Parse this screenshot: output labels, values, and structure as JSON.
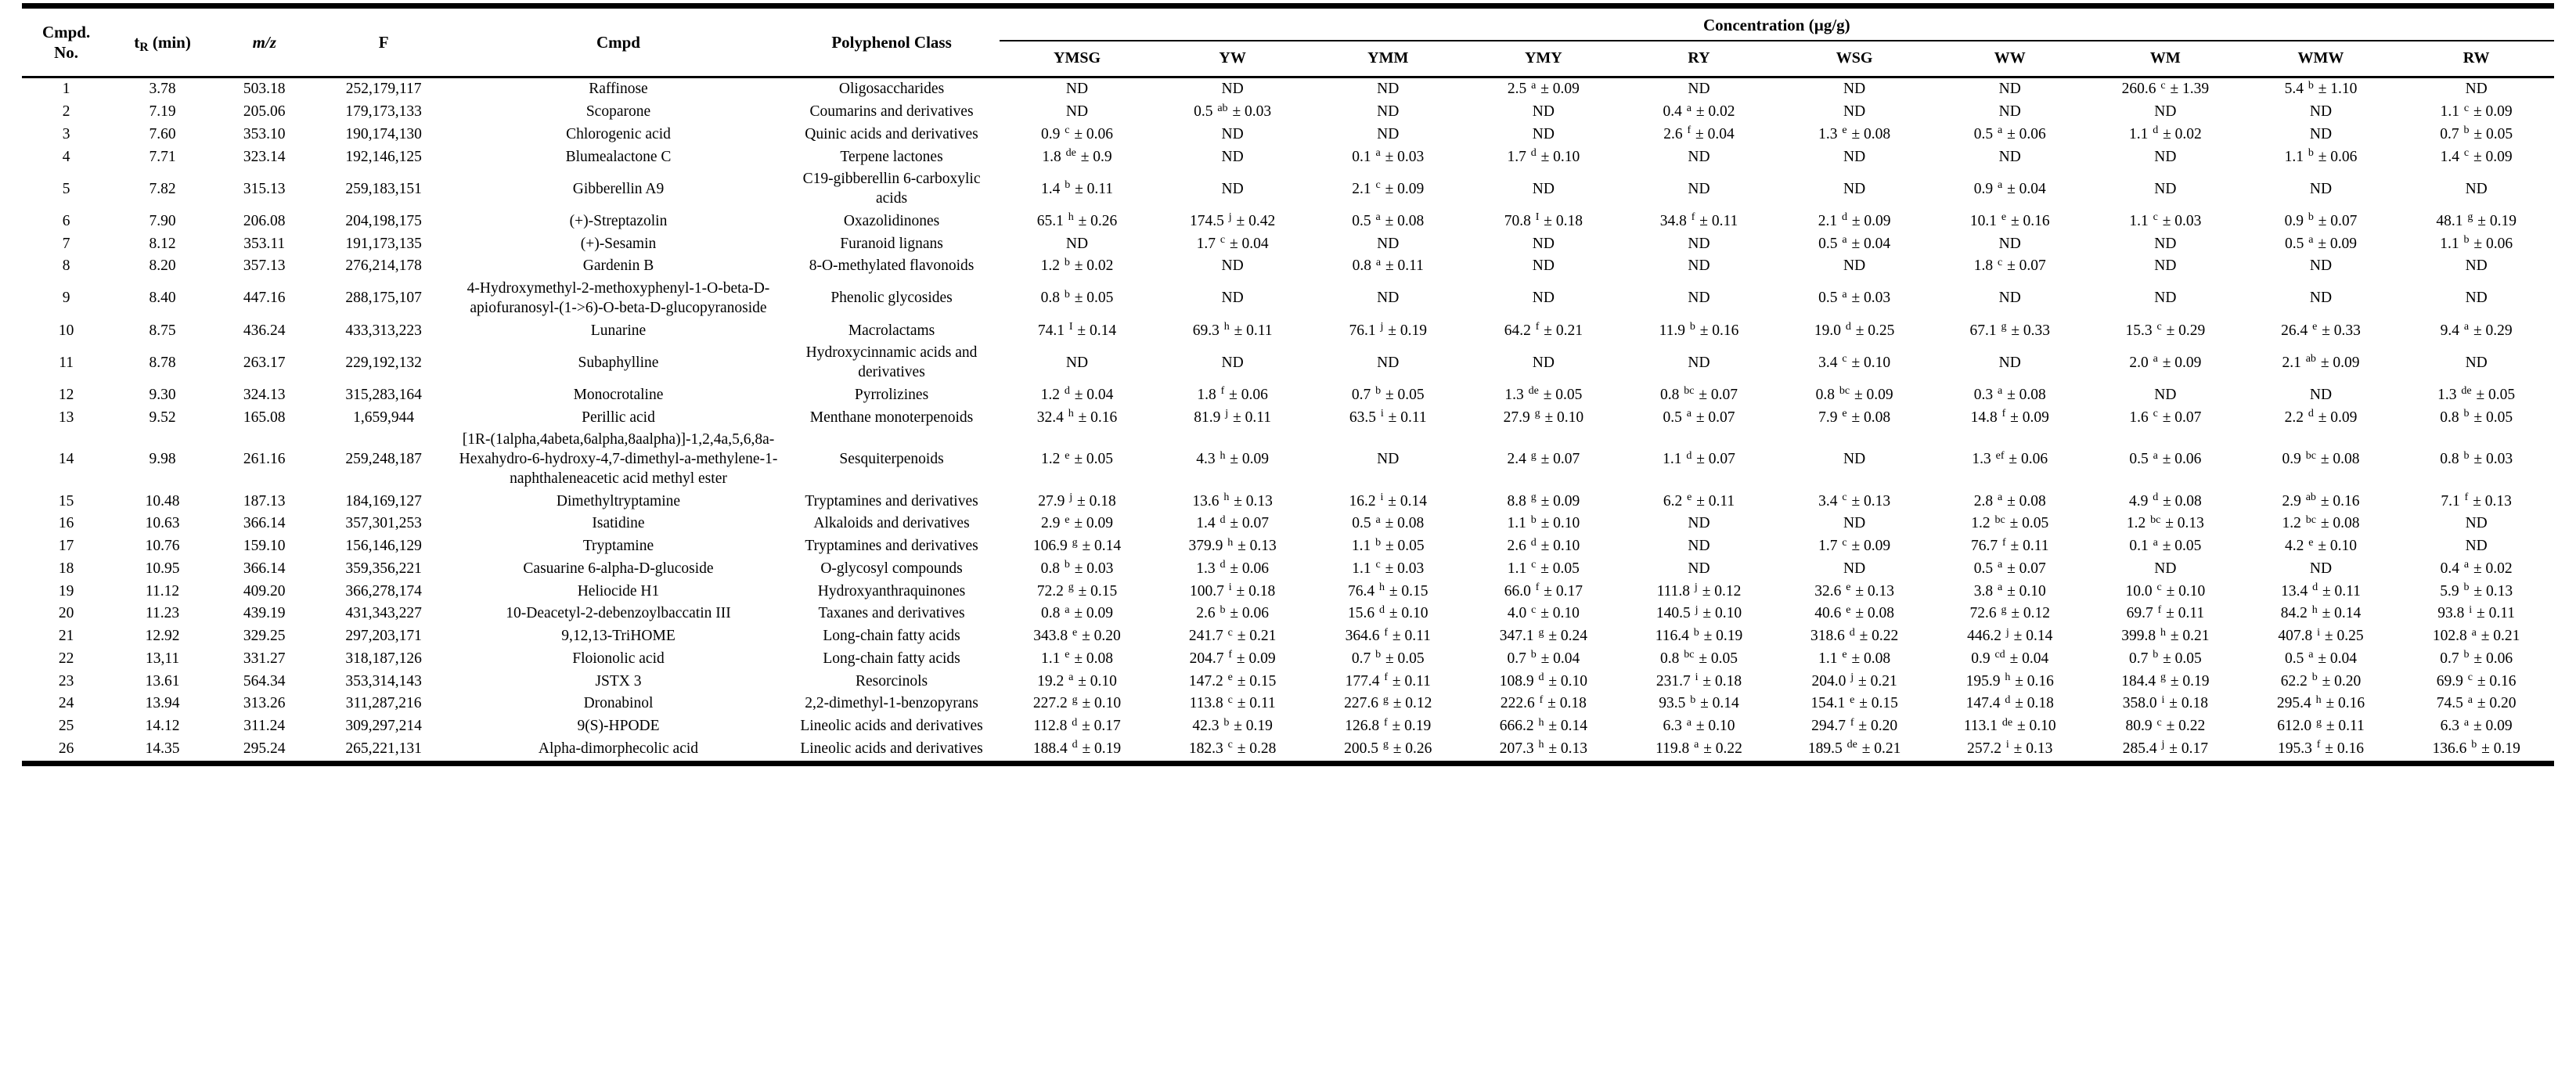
{
  "table": {
    "headers": {
      "cmpd_no_line1": "Cmpd.",
      "cmpd_no_line2": "No.",
      "tr_base": "t",
      "tr_sub": "R",
      "tr_rest": "(min)",
      "mz": "m/z",
      "f": "F",
      "cmpd": "Cmpd",
      "polyphenol_class": "Polyphenol Class",
      "concentration": "Concentration (µg/g)",
      "samples": [
        "YMSG",
        "YW",
        "YMM",
        "YMY",
        "RY",
        "WSG",
        "WW",
        "WM",
        "WMW",
        "RW"
      ]
    },
    "rows": [
      {
        "no": "1",
        "tr": "3.78",
        "mz": "503.18",
        "f": "252,179,117",
        "cmpd": "Raffinose",
        "cls": "Oligosaccharides",
        "conc": [
          "ND",
          "ND",
          "ND",
          "2.5 a ± 0.09",
          "ND",
          "ND",
          "ND",
          "260.6 c ± 1.39",
          "5.4 b ± 1.10",
          "ND"
        ]
      },
      {
        "no": "2",
        "tr": "7.19",
        "mz": "205.06",
        "f": "179,173,133",
        "cmpd": "Scoparone",
        "cls": "Coumarins and derivatives",
        "conc": [
          "ND",
          "0.5 ab ± 0.03",
          "ND",
          "ND",
          "0.4 a ± 0.02",
          "ND",
          "ND",
          "ND",
          "ND",
          "1.1 c ± 0.09"
        ]
      },
      {
        "no": "3",
        "tr": "7.60",
        "mz": "353.10",
        "f": "190,174,130",
        "cmpd": "Chlorogenic acid",
        "cls": "Quinic acids and derivatives",
        "conc": [
          "0.9 c ± 0.06",
          "ND",
          "ND",
          "ND",
          "2.6 f ± 0.04",
          "1.3 e ± 0.08",
          "0.5 a ± 0.06",
          "1.1 d ± 0.02",
          "ND",
          "0.7 b ± 0.05"
        ]
      },
      {
        "no": "4",
        "tr": "7.71",
        "mz": "323.14",
        "f": "192,146,125",
        "cmpd": "Blumealactone C",
        "cls": "Terpene lactones",
        "conc": [
          "1.8 de ± 0.9",
          "ND",
          "0.1 a ± 0.03",
          "1.7 d ± 0.10",
          "ND",
          "ND",
          "ND",
          "ND",
          "1.1 b ± 0.06",
          "1.4 c ± 0.09"
        ]
      },
      {
        "no": "5",
        "tr": "7.82",
        "mz": "315.13",
        "f": "259,183,151",
        "cmpd": "Gibberellin A9",
        "cls": "C19-gibberellin 6-carboxylic acids",
        "conc": [
          "1.4 b ± 0.11",
          "ND",
          "2.1 c ± 0.09",
          "ND",
          "ND",
          "ND",
          "0.9 a ± 0.04",
          "ND",
          "ND",
          "ND"
        ]
      },
      {
        "no": "6",
        "tr": "7.90",
        "mz": "206.08",
        "f": "204,198,175",
        "cmpd": "(+)-Streptazolin",
        "cls": "Oxazolidinones",
        "conc": [
          "65.1 h ± 0.26",
          "174.5 j ± 0.42",
          "0.5 a ± 0.08",
          "70.8 I ± 0.18",
          "34.8 f ± 0.11",
          "2.1 d ± 0.09",
          "10.1 e ± 0.16",
          "1.1 c ± 0.03",
          "0.9 b ± 0.07",
          "48.1 g ± 0.19"
        ]
      },
      {
        "no": "7",
        "tr": "8.12",
        "mz": "353.11",
        "f": "191,173,135",
        "cmpd": "(+)-Sesamin",
        "cls": "Furanoid lignans",
        "conc": [
          "ND",
          "1.7 c ± 0.04",
          "ND",
          "ND",
          "ND",
          "0.5 a ± 0.04",
          "ND",
          "ND",
          "0.5 a ± 0.09",
          "1.1 b ± 0.06"
        ]
      },
      {
        "no": "8",
        "tr": "8.20",
        "mz": "357.13",
        "f": "276,214,178",
        "cmpd": "Gardenin B",
        "cls": "8-O-methylated flavonoids",
        "conc": [
          "1.2 b ± 0.02",
          "ND",
          "0.8 a ± 0.11",
          "ND",
          "ND",
          "ND",
          "1.8 c ± 0.07",
          "ND",
          "ND",
          "ND"
        ]
      },
      {
        "no": "9",
        "tr": "8.40",
        "mz": "447.16",
        "f": "288,175,107",
        "cmpd": "4-Hydroxymethyl-2-methoxyphenyl-1-O-beta-D-apiofuranosyl-(1->6)-O-beta-D-glucopyranoside",
        "cls": "Phenolic glycosides",
        "conc": [
          "0.8 b ± 0.05",
          "ND",
          "ND",
          "ND",
          "ND",
          "0.5 a ± 0.03",
          "ND",
          "ND",
          "ND",
          "ND"
        ]
      },
      {
        "no": "10",
        "tr": "8.75",
        "mz": "436.24",
        "f": "433,313,223",
        "cmpd": "Lunarine",
        "cls": "Macrolactams",
        "conc": [
          "74.1 I ± 0.14",
          "69.3 h ± 0.11",
          "76.1 j ± 0.19",
          "64.2 f ± 0.21",
          "11.9 b ± 0.16",
          "19.0 d ± 0.25",
          "67.1 g ± 0.33",
          "15.3 c ± 0.29",
          "26.4 e ± 0.33",
          "9.4 a ± 0.29"
        ]
      },
      {
        "no": "11",
        "tr": "8.78",
        "mz": "263.17",
        "f": "229,192,132",
        "cmpd": "Subaphylline",
        "cls": "Hydroxycinnamic acids and derivatives",
        "conc": [
          "ND",
          "ND",
          "ND",
          "ND",
          "ND",
          "3.4 c ± 0.10",
          "ND",
          "2.0 a ± 0.09",
          "2.1 ab ± 0.09",
          "ND"
        ]
      },
      {
        "no": "12",
        "tr": "9.30",
        "mz": "324.13",
        "f": "315,283,164",
        "cmpd": "Monocrotaline",
        "cls": "Pyrrolizines",
        "conc": [
          "1.2 d ± 0.04",
          "1.8 f ± 0.06",
          "0.7 b ± 0.05",
          "1.3 de ± 0.05",
          "0.8 bc ± 0.07",
          "0.8 bc ± 0.09",
          "0.3 a ± 0.08",
          "ND",
          "ND",
          "1.3 de ± 0.05"
        ]
      },
      {
        "no": "13",
        "tr": "9.52",
        "mz": "165.08",
        "f": "1,659,944",
        "cmpd": "Perillic acid",
        "cls": "Menthane monoterpenoids",
        "conc": [
          "32.4 h ± 0.16",
          "81.9 j ± 0.11",
          "63.5 i ± 0.11",
          "27.9 g ± 0.10",
          "0.5 a ± 0.07",
          "7.9 e ± 0.08",
          "14.8 f ± 0.09",
          "1.6 c ± 0.07",
          "2.2 d ± 0.09",
          "0.8 b ± 0.05"
        ]
      },
      {
        "no": "14",
        "tr": "9.98",
        "mz": "261.16",
        "f": "259,248,187",
        "cmpd": "[1R-(1alpha,4abeta,6alpha,8aalpha)]-1,2,4a,5,6,8a-Hexahydro-6-hydroxy-4,7-dimethyl-a-methylene-1-naphthaleneacetic acid methyl ester",
        "cls": "Sesquiterpenoids",
        "conc": [
          "1.2 e ± 0.05",
          "4.3 h ± 0.09",
          "ND",
          "2.4 g ± 0.07",
          "1.1 d ± 0.07",
          "ND",
          "1.3 ef ± 0.06",
          "0.5 a ± 0.06",
          "0.9 bc ± 0.08",
          "0.8 b ± 0.03"
        ]
      },
      {
        "no": "15",
        "tr": "10.48",
        "mz": "187.13",
        "f": "184,169,127",
        "cmpd": "Dimethyltryptamine",
        "cls": "Tryptamines and derivatives",
        "conc": [
          "27.9 j ± 0.18",
          "13.6 h ± 0.13",
          "16.2 i ± 0.14",
          "8.8 g ± 0.09",
          "6.2 e ± 0.11",
          "3.4 c ± 0.13",
          "2.8 a ± 0.08",
          "4.9 d ± 0.08",
          "2.9 ab ± 0.16",
          "7.1 f ± 0.13"
        ]
      },
      {
        "no": "16",
        "tr": "10.63",
        "mz": "366.14",
        "f": "357,301,253",
        "cmpd": "Isatidine",
        "cls": "Alkaloids and derivatives",
        "conc": [
          "2.9 e ± 0.09",
          "1.4 d ± 0.07",
          "0.5 a ± 0.08",
          "1.1 b ± 0.10",
          "ND",
          "ND",
          "1.2 bc ± 0.05",
          "1.2 bc ± 0.13",
          "1.2 bc ± 0.08",
          "ND"
        ]
      },
      {
        "no": "17",
        "tr": "10.76",
        "mz": "159.10",
        "f": "156,146,129",
        "cmpd": "Tryptamine",
        "cls": "Tryptamines and derivatives",
        "conc": [
          "106.9 g ± 0.14",
          "379.9 h ± 0.13",
          "1.1 b ± 0.05",
          "2.6 d ± 0.10",
          "ND",
          "1.7 c ± 0.09",
          "76.7 f ± 0.11",
          "0.1 a ± 0.05",
          "4.2 e ± 0.10",
          "ND"
        ]
      },
      {
        "no": "18",
        "tr": "10.95",
        "mz": "366.14",
        "f": "359,356,221",
        "cmpd": "Casuarine 6-alpha-D-glucoside",
        "cls": "O-glycosyl compounds",
        "conc": [
          "0.8 b ± 0.03",
          "1.3 d ± 0.06",
          "1.1 c ± 0.03",
          "1.1 c ± 0.05",
          "ND",
          "ND",
          "0.5 a ± 0.07",
          "ND",
          "ND",
          "0.4 a ± 0.02"
        ]
      },
      {
        "no": "19",
        "tr": "11.12",
        "mz": "409.20",
        "f": "366,278,174",
        "cmpd": "Heliocide H1",
        "cls": "Hydroxyanthraquinones",
        "conc": [
          "72.2 g ± 0.15",
          "100.7 i ± 0.18",
          "76.4 h ± 0.15",
          "66.0 f ± 0.17",
          "111.8 j ± 0.12",
          "32.6 e ± 0.13",
          "3.8 a ± 0.10",
          "10.0 c ± 0.10",
          "13.4 d ± 0.11",
          "5.9 b ± 0.13"
        ]
      },
      {
        "no": "20",
        "tr": "11.23",
        "mz": "439.19",
        "f": "431,343,227",
        "cmpd": "10-Deacetyl-2-debenzoylbaccatin III",
        "cls": "Taxanes and derivatives",
        "conc": [
          "0.8 a ± 0.09",
          "2.6 b ± 0.06",
          "15.6 d ± 0.10",
          "4.0 c ± 0.10",
          "140.5 j ± 0.10",
          "40.6 e ± 0.08",
          "72.6 g ± 0.12",
          "69.7 f ± 0.11",
          "84.2 h ± 0.14",
          "93.8 i ± 0.11"
        ]
      },
      {
        "no": "21",
        "tr": "12.92",
        "mz": "329.25",
        "f": "297,203,171",
        "cmpd": "9,12,13-TriHOME",
        "cls": "Long-chain fatty acids",
        "conc": [
          "343.8 e ± 0.20",
          "241.7 c ± 0.21",
          "364.6 f ± 0.11",
          "347.1 g ± 0.24",
          "116.4 b ± 0.19",
          "318.6 d ± 0.22",
          "446.2 j ± 0.14",
          "399.8 h ± 0.21",
          "407.8 i ± 0.25",
          "102.8 a ± 0.21"
        ]
      },
      {
        "no": "22",
        "tr": "13,11",
        "mz": "331.27",
        "f": "318,187,126",
        "cmpd": "Floionolic acid",
        "cls": "Long-chain fatty acids",
        "conc": [
          "1.1 e ± 0.08",
          "204.7 f ± 0.09",
          "0.7 b ± 0.05",
          "0.7 b ± 0.04",
          "0.8 bc ± 0.05",
          "1.1 e ± 0.08",
          "0.9 cd ± 0.04",
          "0.7 b ± 0.05",
          "0.5 a ± 0.04",
          "0.7 b ± 0.06"
        ]
      },
      {
        "no": "23",
        "tr": "13.61",
        "mz": "564.34",
        "f": "353,314,143",
        "cmpd": "JSTX 3",
        "cls": "Resorcinols",
        "conc": [
          "19.2 a ± 0.10",
          "147.2 e ± 0.15",
          "177.4 f ± 0.11",
          "108.9 d ± 0.10",
          "231.7 i ± 0.18",
          "204.0 j ± 0.21",
          "195.9 h ± 0.16",
          "184.4 g ± 0.19",
          "62.2 b ± 0.20",
          "69.9 c ± 0.16"
        ]
      },
      {
        "no": "24",
        "tr": "13.94",
        "mz": "313.26",
        "f": "311,287,216",
        "cmpd": "Dronabinol",
        "cls": "2,2-dimethyl-1-benzopyrans",
        "conc": [
          "227.2 g ± 0.10",
          "113.8 c ± 0.11",
          "227.6 g ± 0.12",
          "222.6 f ± 0.18",
          "93.5 b ± 0.14",
          "154.1 e ± 0.15",
          "147.4 d ± 0.18",
          "358.0 i ± 0.18",
          "295.4 h ± 0.16",
          "74.5 a ± 0.20"
        ]
      },
      {
        "no": "25",
        "tr": "14.12",
        "mz": "311.24",
        "f": "309,297,214",
        "cmpd": "9(S)-HPODE",
        "cls": "Lineolic acids and derivatives",
        "conc": [
          "112.8 d ± 0.17",
          "42.3 b ± 0.19",
          "126.8 f ± 0.19",
          "666.2 h ± 0.14",
          "6.3 a ± 0.10",
          "294.7 f ± 0.20",
          "113.1 de ± 0.10",
          "80.9 c ± 0.22",
          "612.0 g ± 0.11",
          "6.3 a ± 0.09"
        ]
      },
      {
        "no": "26",
        "tr": "14.35",
        "mz": "295.24",
        "f": "265,221,131",
        "cmpd": "Alpha-dimorphecolic acid",
        "cls": "Lineolic acids and derivatives",
        "conc": [
          "188.4 d ± 0.19",
          "182.3 c ± 0.28",
          "200.5 g ± 0.26",
          "207.3 h ± 0.13",
          "119.8 a ± 0.22",
          "189.5 de ± 0.21",
          "257.2 i ± 0.13",
          "285.4 j ± 0.17",
          "195.3 f ± 0.16",
          "136.6 b ± 0.19"
        ]
      }
    ]
  }
}
